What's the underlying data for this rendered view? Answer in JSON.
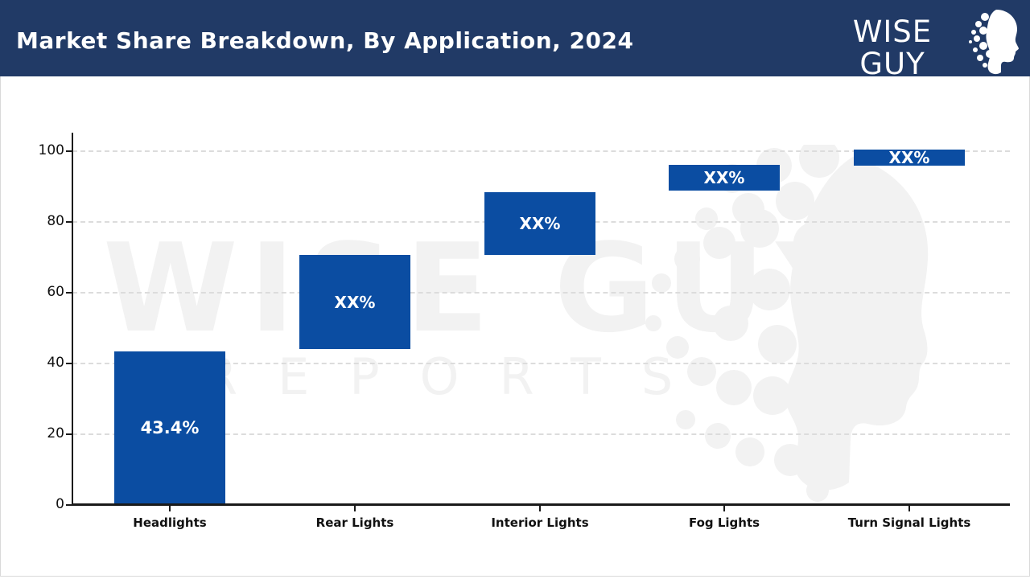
{
  "header": {
    "title": "Market Share Breakdown, By Application, 2024",
    "bg_color": "#213A66",
    "logo": {
      "line1": "WISE GUY",
      "line2": "REPORTS"
    }
  },
  "watermark": {
    "line1": "WISE GUY",
    "line2": "REPORTS"
  },
  "chart_data": {
    "type": "bar",
    "subtype": "waterfall",
    "title": "Market Share Breakdown, By Application, 2024",
    "xlabel": "",
    "ylabel": "",
    "categories": [
      "Headlights",
      "Rear Lights",
      "Interior Lights",
      "Fog Lights",
      "Turn Signal Lights"
    ],
    "segments": [
      {
        "category": "Headlights",
        "start": 0,
        "end": 43.4,
        "label": "43.4%"
      },
      {
        "category": "Rear Lights",
        "start": 44.0,
        "end": 70.7,
        "label": "XX%"
      },
      {
        "category": "Interior Lights",
        "start": 70.7,
        "end": 88.4,
        "label": "XX%"
      },
      {
        "category": "Fog Lights",
        "start": 88.9,
        "end": 96.1,
        "label": "XX%"
      },
      {
        "category": "Turn Signal Lights",
        "start": 95.9,
        "end": 100.5,
        "label": "XX%"
      }
    ],
    "y_ticks": [
      0,
      20,
      40,
      60,
      80,
      100
    ],
    "ylim": [
      0,
      105
    ],
    "grid": "dashed-horizontal",
    "legend": "none",
    "bar_color": "#0B4DA2",
    "label_color": "#FFFFFF"
  }
}
